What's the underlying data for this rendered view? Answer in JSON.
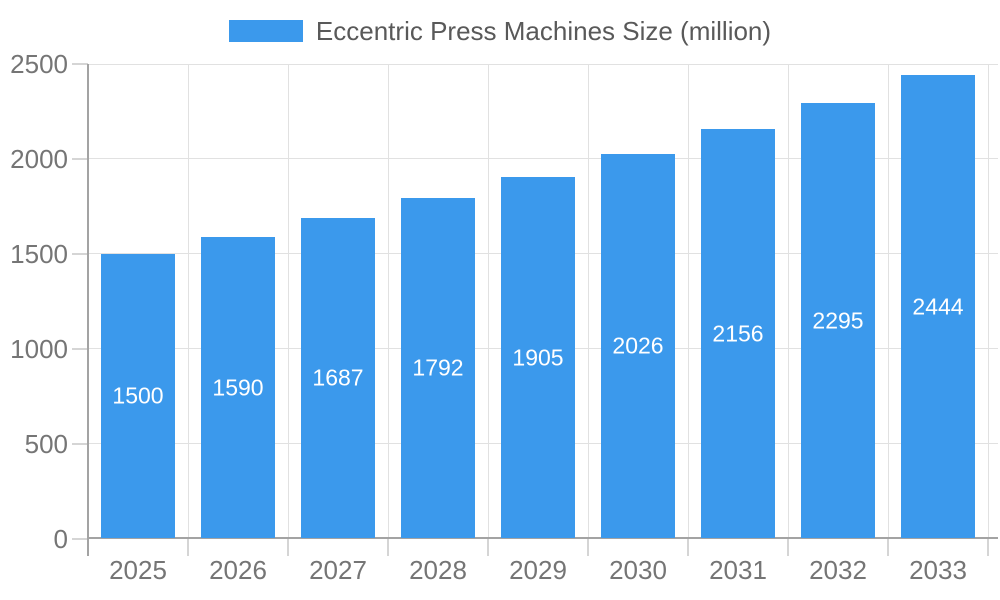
{
  "legend": {
    "label": "Eccentric Press Machines Size (million)"
  },
  "chart_data": {
    "type": "bar",
    "title": "Eccentric Press Machines Size (million)",
    "categories": [
      "2025",
      "2026",
      "2027",
      "2028",
      "2029",
      "2030",
      "2031",
      "2032",
      "2033"
    ],
    "values": [
      1500,
      1590,
      1687,
      1792,
      1905,
      2026,
      2156,
      2295,
      2444
    ],
    "bar_labels": [
      "1500",
      "1590",
      "1687",
      "1792",
      "1905",
      "2026",
      "2156",
      "2295",
      "2444"
    ],
    "xlabel": "",
    "ylabel": "",
    "ylim": [
      0,
      2500
    ],
    "yticks": [
      0,
      500,
      1000,
      1500,
      2000,
      2500
    ],
    "grid": true,
    "legend_position": "top",
    "bar_label_position": "center-inside"
  },
  "colors": {
    "bar": "#3B99EC",
    "grid": "#E1E1E1",
    "axis": "#A3A3A3",
    "tick": "#D5D5D5",
    "axis_text": "#757575",
    "title_text": "#595959",
    "bar_label_text": "#FFFFFF",
    "background": "#FFFFFF"
  }
}
